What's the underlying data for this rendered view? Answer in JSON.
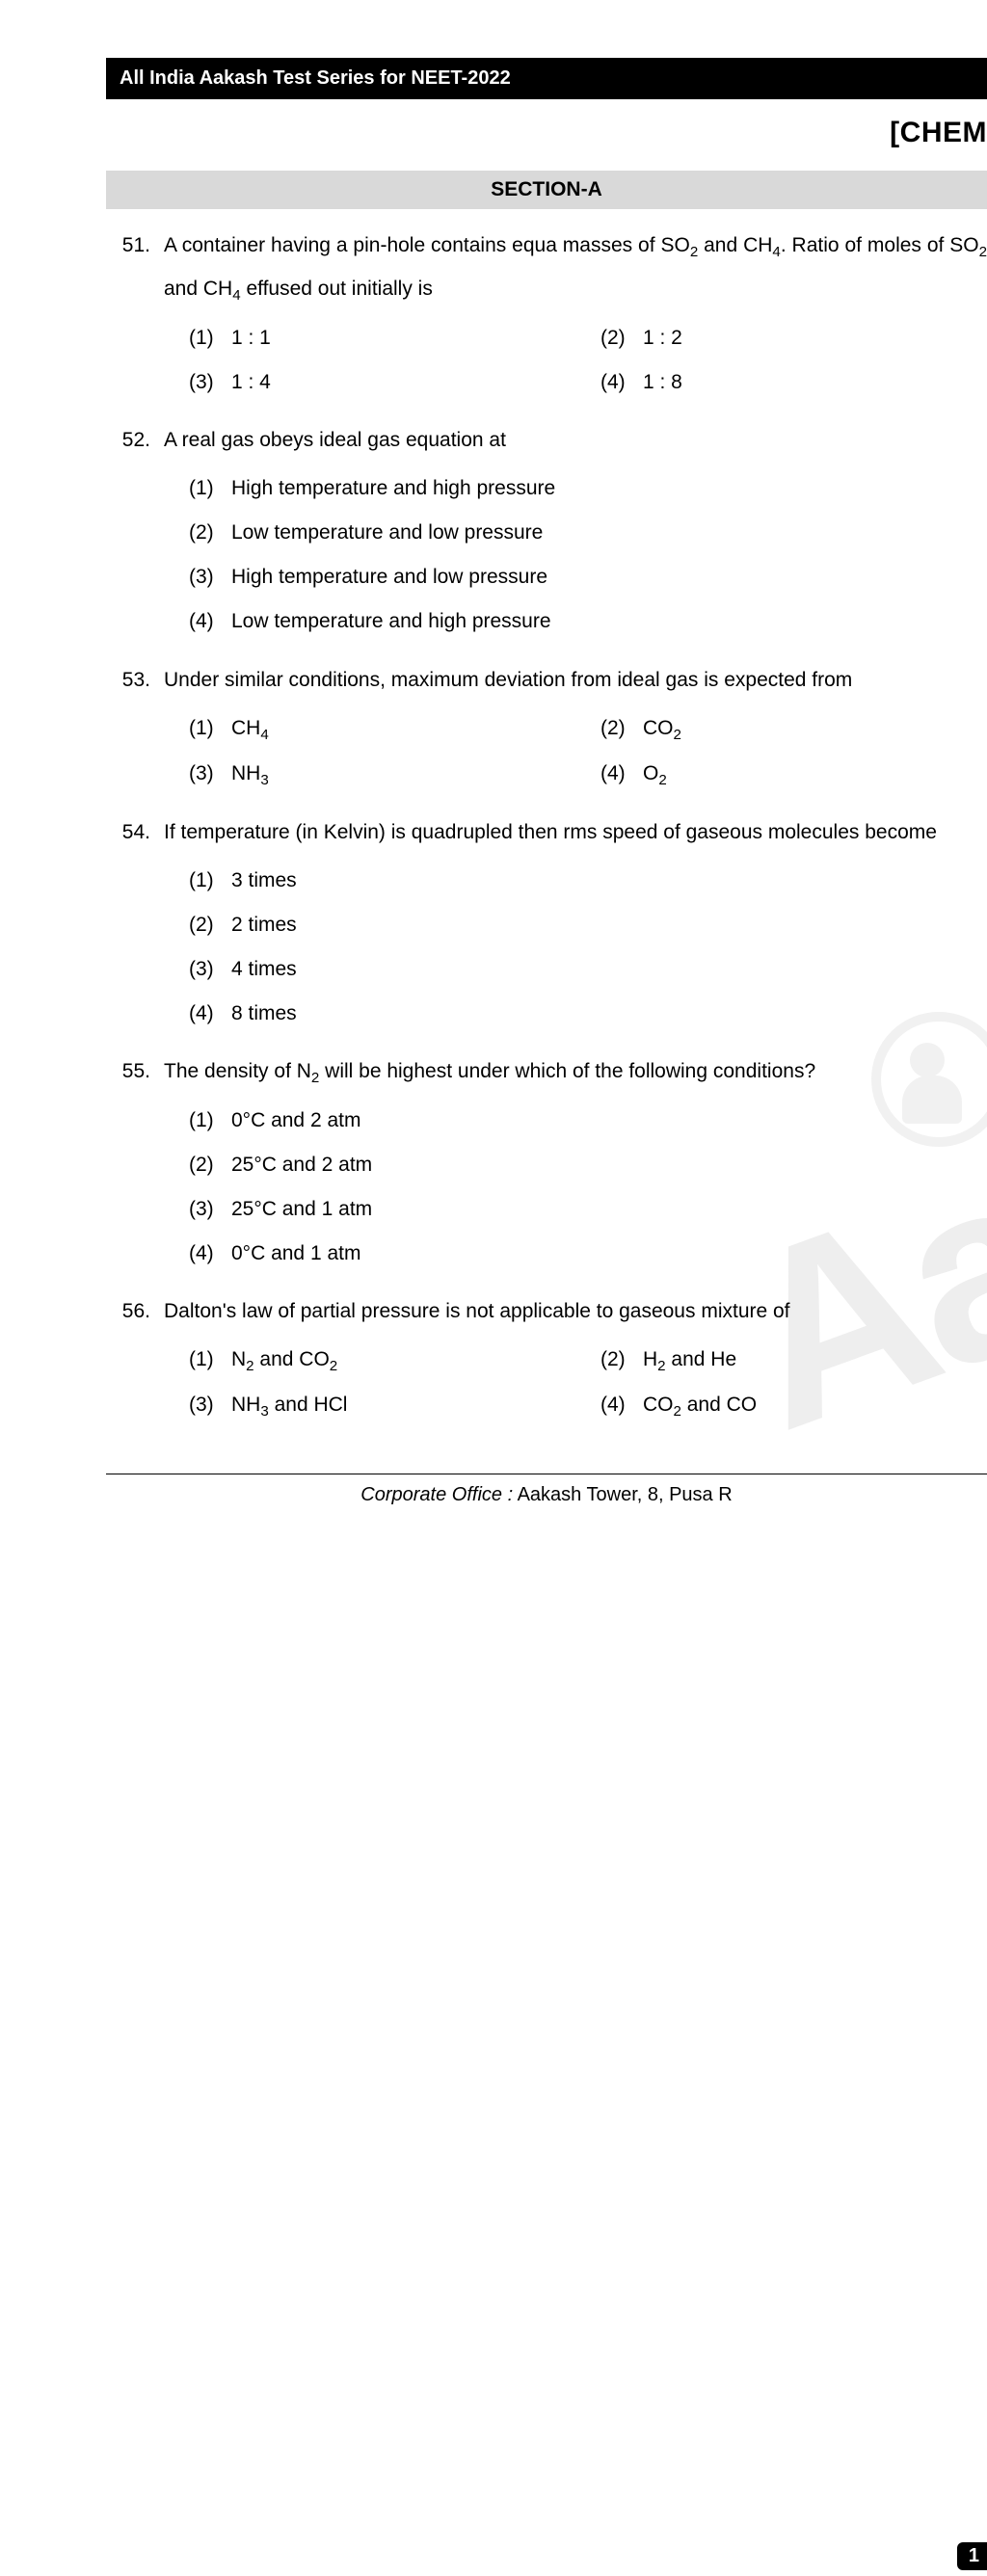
{
  "header": {
    "title": "All India Aakash Test Series for NEET-2022",
    "subject": "[CHEM",
    "section": "SECTION-A"
  },
  "questions": [
    {
      "num": "51.",
      "text": "A container having a pin-hole contains equa masses of SO<sub>2</sub> and CH<sub>4</sub>. Ratio of moles of SO<sub>2</sub> and CH<sub>4</sub> effused out initially is",
      "layout": "two-col",
      "options": [
        {
          "n": "(1)",
          "t": "1 : 1"
        },
        {
          "n": "(2)",
          "t": "1 : 2"
        },
        {
          "n": "(3)",
          "t": "1 : 4"
        },
        {
          "n": "(4)",
          "t": "1 : 8"
        }
      ]
    },
    {
      "num": "52.",
      "text": "A real gas obeys ideal gas equation at",
      "layout": "one-col",
      "options": [
        {
          "n": "(1)",
          "t": "High temperature and high pressure"
        },
        {
          "n": "(2)",
          "t": "Low temperature and low pressure"
        },
        {
          "n": "(3)",
          "t": "High temperature and low pressure"
        },
        {
          "n": "(4)",
          "t": "Low temperature and high pressure"
        }
      ]
    },
    {
      "num": "53.",
      "text": "Under similar conditions, maximum deviation from ideal gas is expected from",
      "layout": "two-col",
      "options": [
        {
          "n": "(1)",
          "t": "CH<sub>4</sub>"
        },
        {
          "n": "(2)",
          "t": "CO<sub>2</sub>"
        },
        {
          "n": "(3)",
          "t": "NH<sub>3</sub>"
        },
        {
          "n": "(4)",
          "t": "O<sub>2</sub>"
        }
      ]
    },
    {
      "num": "54.",
      "text": "If temperature (in Kelvin) is quadrupled then rms speed of gaseous molecules become",
      "layout": "one-col",
      "options": [
        {
          "n": "(1)",
          "t": "3 times"
        },
        {
          "n": "(2)",
          "t": "2 times"
        },
        {
          "n": "(3)",
          "t": "4 times"
        },
        {
          "n": "(4)",
          "t": "8 times"
        }
      ]
    },
    {
      "num": "55.",
      "text": "The density of N<sub>2</sub> will be highest under which of the following conditions?",
      "layout": "one-col",
      "options": [
        {
          "n": "(1)",
          "t": "0°C and 2 atm"
        },
        {
          "n": "(2)",
          "t": "25°C and 2 atm"
        },
        {
          "n": "(3)",
          "t": "25°C and 1 atm"
        },
        {
          "n": "(4)",
          "t": "0°C and 1 atm"
        }
      ]
    },
    {
      "num": "56.",
      "text": "Dalton's law of partial pressure is not applicable to gaseous mixture of",
      "layout": "two-col",
      "options": [
        {
          "n": "(1)",
          "t": "N<sub>2</sub> and CO<sub>2</sub>"
        },
        {
          "n": "(2)",
          "t": "H<sub>2</sub> and He"
        },
        {
          "n": "(3)",
          "t": "NH<sub>3</sub> and HCl"
        },
        {
          "n": "(4)",
          "t": "CO<sub>2</sub> and CO"
        }
      ]
    }
  ],
  "footer": {
    "label": "Corporate Office :",
    "address": " Aakash Tower, 8, Pusa R",
    "page": "1"
  },
  "watermark": "Aa"
}
